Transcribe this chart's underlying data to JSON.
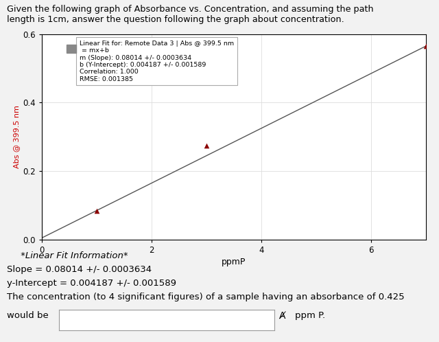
{
  "title_line1": "Given the following graph of Absorbance vs. Concentration, and assuming the path",
  "title_line2": "length is 1cm, answer the question following the graph about concentration.",
  "xlabel": "ppmP",
  "ylabel": "Abs @ 399.5 nm",
  "ylabel_color": "#cc0000",
  "xlim": [
    0,
    7
  ],
  "ylim": [
    0.0,
    0.6
  ],
  "xticks": [
    0,
    2,
    4,
    6
  ],
  "yticks": [
    0.0,
    0.2,
    0.4,
    0.6
  ],
  "data_points": [
    [
      1.0,
      0.084
    ],
    [
      3.0,
      0.275
    ],
    [
      7.0,
      0.565
    ]
  ],
  "slope": 0.08014,
  "intercept": 0.004187,
  "line_color": "#555555",
  "marker_color": "#8b0000",
  "legend_square_color": "#888888",
  "legend_title": "Linear Fit for: Remote Data 3 | Abs @ 399.5 nm",
  "legend_lines": [
    " = mx+b",
    "m (Slope): 0.08014 +/- 0.0003634",
    "b (Y-Intercept): 0.004187 +/- 0.001589",
    "Correlation: 1.000",
    "RMSE: 0.001385"
  ],
  "footer_line0": " *Linear Fit Information*",
  "footer_line1": "Slope = 0.08014 +/- 0.0003634",
  "footer_line2": "y-Intercept = 0.004187 +/- 0.001589",
  "footer_line3": "The concentration (to 4 significant figures) of a sample having an absorbance of 0.425",
  "footer_last": "would be",
  "footer_units": "ppm P.",
  "bg_color": "#f2f2f2",
  "plot_bg": "#ffffff",
  "grid_color": "#dddddd"
}
